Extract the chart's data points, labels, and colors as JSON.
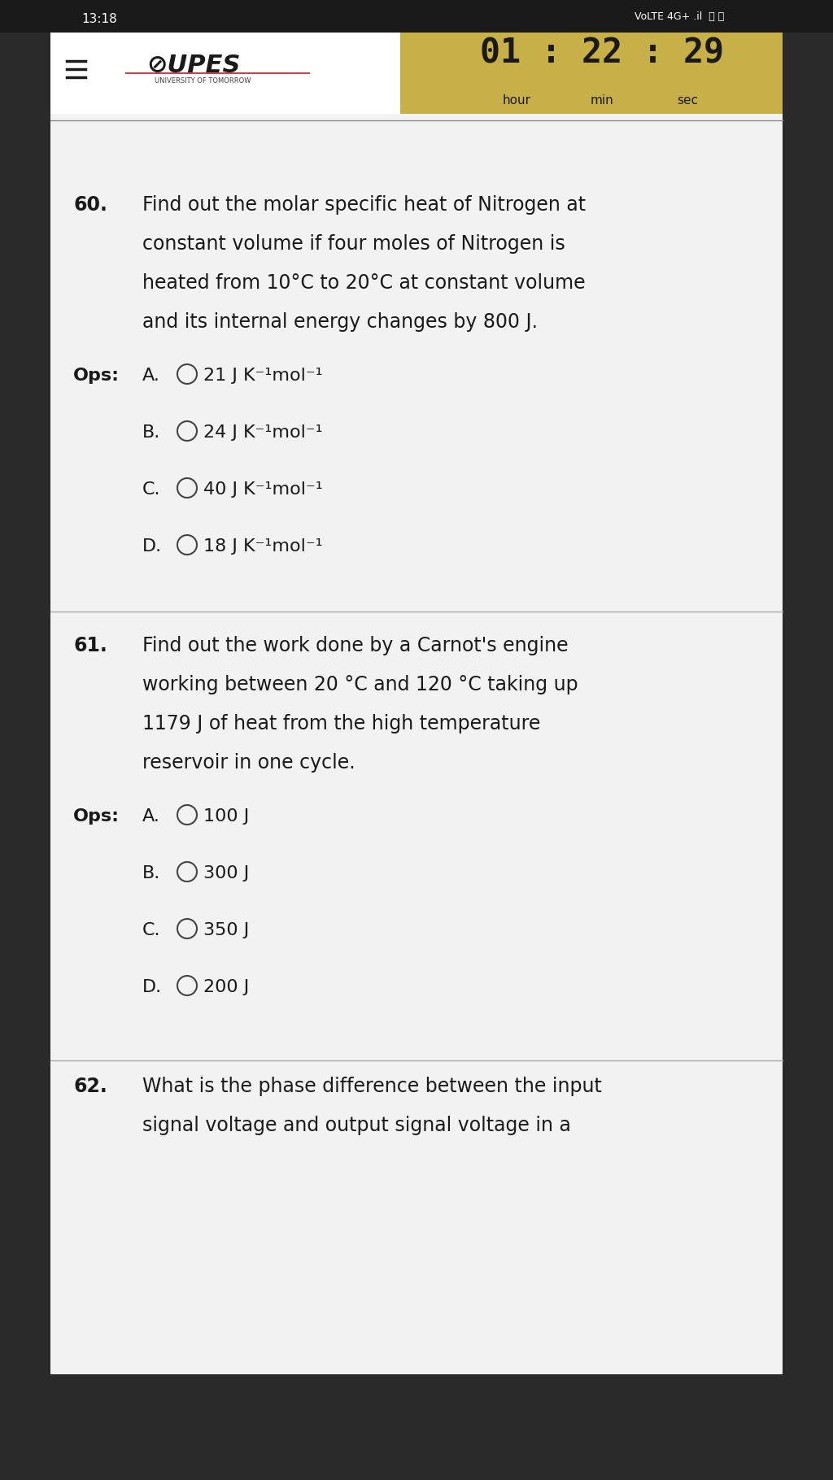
{
  "bg_color": "#e8e8e8",
  "content_bg": "#f0f0f0",
  "header_bg_left": "#ffffff",
  "header_bg_right": "#c8b560",
  "status_bar_text": "13:18",
  "timer_text": "01 : 22 : 29",
  "timer_labels": [
    "hour",
    "min",
    "sec"
  ],
  "q60_num": "60.",
  "q60_text_lines": [
    "Find out the molar specific heat of Nitrogen at",
    "constant volume if four moles of Nitrogen is",
    "heated from 10°C to 20°C at constant volume",
    "and its internal energy changes by 800 J."
  ],
  "ops_label": "Ops:",
  "q60_options": [
    [
      "A.",
      "21 J K⁻¹mol⁻¹"
    ],
    [
      "B.",
      "24 J K⁻¹mol⁻¹"
    ],
    [
      "C.",
      "40 J K⁻¹mol⁻¹"
    ],
    [
      "D.",
      "18 J K⁻¹mol⁻¹"
    ]
  ],
  "q61_num": "61.",
  "q61_text_lines": [
    "Find out the work done by a Carnot's engine",
    "working between 20 °C and 120 °C taking up",
    "1179 J of heat from the high temperature",
    "reservoir in one cycle."
  ],
  "q61_options": [
    [
      "A.",
      "100 J"
    ],
    [
      "B.",
      "300 J"
    ],
    [
      "C.",
      "350 J"
    ],
    [
      "D.",
      "200 J"
    ]
  ],
  "q62_num": "62.",
  "q62_text_lines": [
    "What is the phase difference between the input",
    "signal voltage and output signal voltage in a"
  ],
  "text_color": "#1a1a1a",
  "line_color": "#aaaaaa"
}
